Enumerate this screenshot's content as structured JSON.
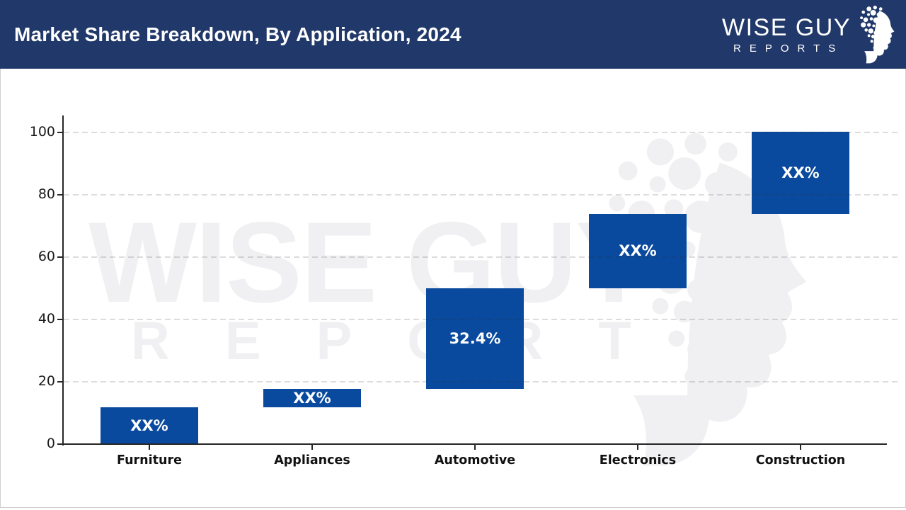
{
  "header": {
    "title": "Market Share Breakdown, By Application, 2024",
    "logo": {
      "name": "WISE GUY",
      "tagline": "REPORTS"
    }
  },
  "watermark": {
    "line1": "WISE GUY",
    "line2": "REPORTS"
  },
  "chart_data": {
    "type": "bar",
    "subtype": "floating-segment market-share breakdown (waterfall style)",
    "title": "Market Share Breakdown, By Application, 2024",
    "categories": [
      "Furniture",
      "Appliances",
      "Automotive",
      "Electronics",
      "Construction"
    ],
    "series": [
      {
        "name": "Market share (%)",
        "segments": [
          {
            "category": "Furniture",
            "start": 0,
            "end": 11.8,
            "label": "XX%"
          },
          {
            "category": "Appliances",
            "start": 11.8,
            "end": 17.7,
            "label": "XX%"
          },
          {
            "category": "Automotive",
            "start": 17.7,
            "end": 50.1,
            "label": "32.4%"
          },
          {
            "category": "Electronics",
            "start": 50.1,
            "end": 73.9,
            "label": "XX%"
          },
          {
            "category": "Construction",
            "start": 73.9,
            "end": 100.2,
            "label": "XX%"
          }
        ]
      }
    ],
    "xlabel": "",
    "ylabel": "",
    "y_ticks": [
      0,
      20,
      40,
      60,
      80,
      100
    ],
    "ylim": [
      0,
      105
    ],
    "grid": "horizontal dashed lines drawn over bars",
    "legend": "none",
    "bar_color": "#0A4A9E",
    "bar_label_color": "#FFFFFF"
  },
  "colors": {
    "header_bg": "#21386A",
    "bar_fill": "#0A4A9E",
    "axis": "#262626",
    "tick_label": "#1A1A1A",
    "watermark": "#F0F0F2",
    "frame_hairline": "#CFCFCF",
    "background": "#FFFFFF"
  }
}
